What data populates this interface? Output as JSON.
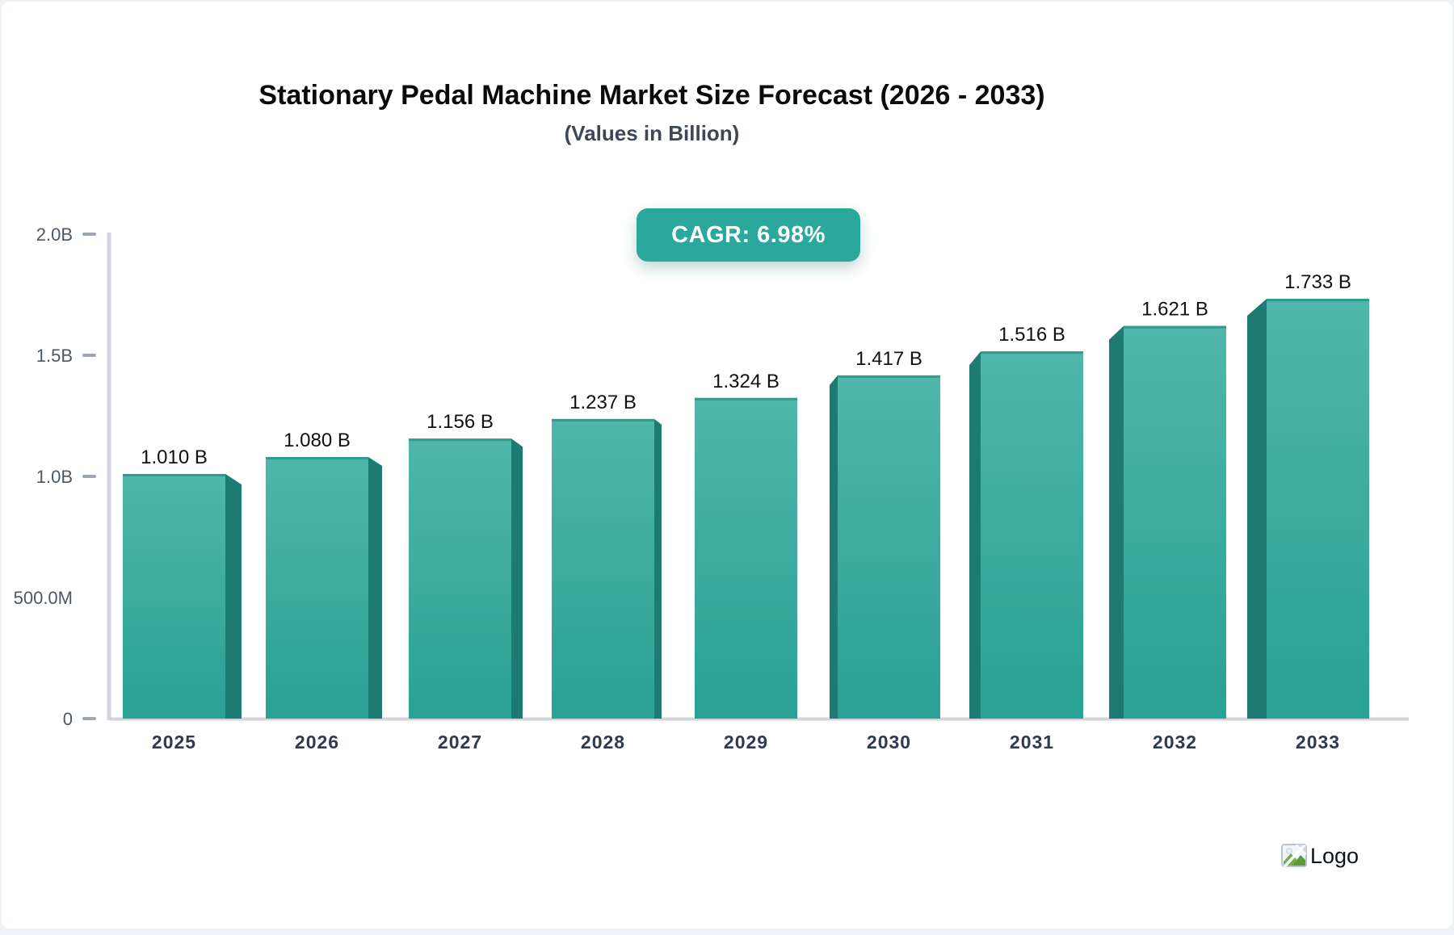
{
  "page": {
    "background": "#eef1f6",
    "card_background": "#ffffff"
  },
  "header": {
    "title": "Stationary Pedal Machine Market Size Forecast (2026 - 2033)",
    "subtitle": "(Values in Billion)",
    "badge_label": "CAGR: 6.98%",
    "badge_color": "#2aa89b"
  },
  "chart_data": {
    "type": "bar",
    "title": "Stationary Pedal Machine Market Size Forecast (2026 - 2033)",
    "subtitle": "(Values in Billion)",
    "cagr": "6.98%",
    "categories": [
      "2025",
      "2026",
      "2027",
      "2028",
      "2029",
      "2030",
      "2031",
      "2032",
      "2033"
    ],
    "values": [
      1.01,
      1.08,
      1.156,
      1.237,
      1.324,
      1.417,
      1.516,
      1.621,
      1.733
    ],
    "value_labels": [
      "1.010 B",
      "1.080 B",
      "1.156 B",
      "1.237 B",
      "1.324 B",
      "1.417 B",
      "1.516 B",
      "1.621 B",
      "1.733 B"
    ],
    "unit": "Billion",
    "ylim": [
      0,
      2.0
    ],
    "yticks": [
      {
        "label": "2.0B",
        "value": 2.0,
        "dash": true
      },
      {
        "label": "1.5B",
        "value": 1.5,
        "dash": true
      },
      {
        "label": "1.0B",
        "value": 1.0,
        "dash": true
      },
      {
        "label": "500.0M",
        "value": 0.5,
        "dash": false
      },
      {
        "label": "0",
        "value": 0.0,
        "dash": true
      }
    ],
    "grid": false,
    "legend": false,
    "colors": {
      "bar_top": "#50b6ab",
      "bar_bottom": "#29a195",
      "bar_side": "#1e7b73",
      "bar_top_edge": "#2f9c90",
      "axis_line": "#d2d6dc",
      "tick_dash": "#9ca6b2",
      "ytick_label": "#4d5766",
      "xtick_label": "#2e3a50",
      "value_label": "#101010"
    }
  },
  "footer": {
    "logo_alt": "Logo"
  }
}
